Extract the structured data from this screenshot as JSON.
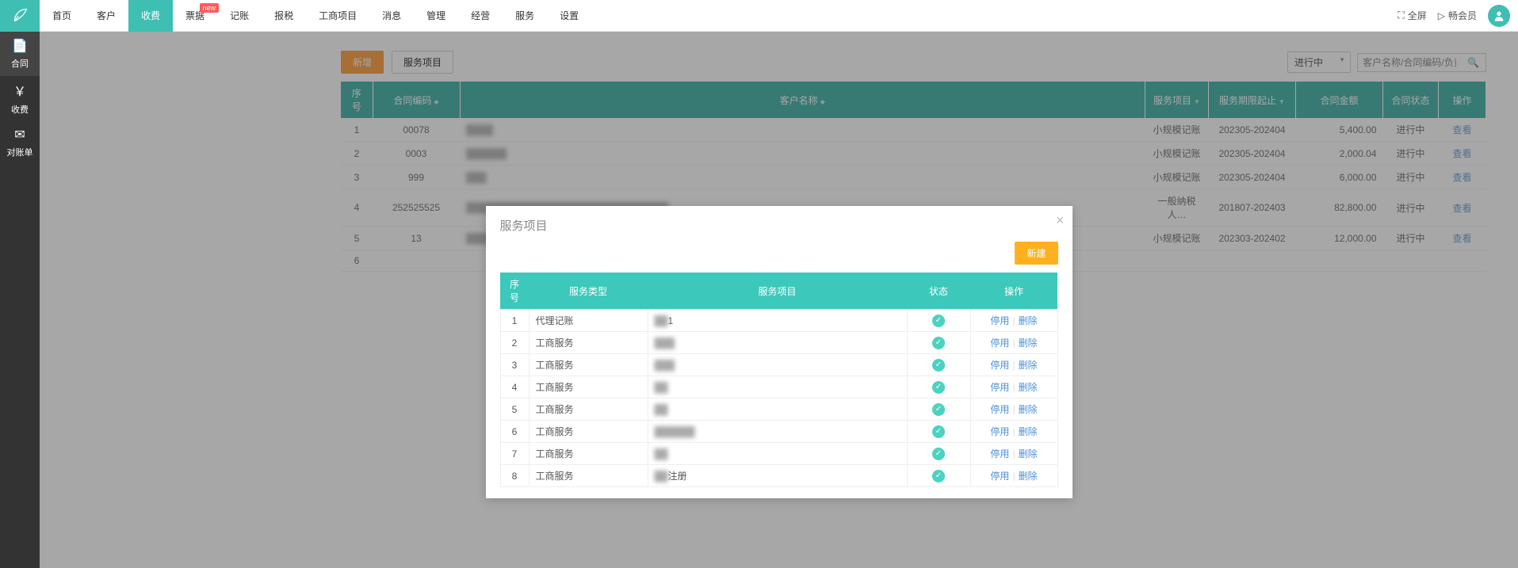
{
  "nav": {
    "items": [
      {
        "label": "首页"
      },
      {
        "label": "客户"
      },
      {
        "label": "收费",
        "active": true
      },
      {
        "label": "票据",
        "badge": "new"
      },
      {
        "label": "记账"
      },
      {
        "label": "报税"
      },
      {
        "label": "工商项目"
      },
      {
        "label": "消息"
      },
      {
        "label": "管理"
      },
      {
        "label": "经营"
      },
      {
        "label": "服务"
      },
      {
        "label": "设置"
      }
    ]
  },
  "header_right": {
    "fullscreen": "全屏",
    "member": "畅会员"
  },
  "sidebar": {
    "items": [
      {
        "icon": "📄",
        "label": "合同",
        "active": true
      },
      {
        "icon": "￥",
        "label": "收费"
      },
      {
        "icon": "✉",
        "label": "对账单"
      }
    ]
  },
  "toolbar": {
    "new_btn": "新增",
    "service_btn": "服务项目",
    "filter_value": "进行中",
    "search_placeholder": "客户名称/合同编码/负责人"
  },
  "table": {
    "headers": {
      "seq": "序号",
      "code": "合同编码",
      "customer": "客户名称",
      "service": "服务项目",
      "period": "服务期限起止",
      "amount": "合同金额",
      "status": "合同状态",
      "ops": "操作"
    },
    "rows": [
      {
        "seq": "1",
        "code": "00078",
        "customer": "████",
        "service": "小规模记账",
        "period": "202305-202404",
        "amount": "5,400.00",
        "status": "进行中",
        "op": "查看"
      },
      {
        "seq": "2",
        "code": "0003",
        "customer": "██████",
        "service": "小规模记账",
        "period": "202305-202404",
        "amount": "2,000.04",
        "status": "进行中",
        "op": "查看"
      },
      {
        "seq": "3",
        "code": "999",
        "customer": "███",
        "service": "小规模记账",
        "period": "202305-202404",
        "amount": "6,000.00",
        "status": "进行中",
        "op": "查看"
      },
      {
        "seq": "4",
        "code": "252525525",
        "customer": "██████████████████████████████",
        "service": "一般纳税人…",
        "period": "201807-202403",
        "amount": "82,800.00",
        "status": "进行中",
        "op": "查看"
      },
      {
        "seq": "5",
        "code": "13",
        "customer": "███████████",
        "service": "小规模记账",
        "period": "202303-202402",
        "amount": "12,000.00",
        "status": "进行中",
        "op": "查看"
      },
      {
        "seq": "6",
        "code": "",
        "customer": "",
        "service": "",
        "period": "",
        "amount": "",
        "status": "",
        "op": ""
      }
    ]
  },
  "modal": {
    "title": "服务项目",
    "new_btn": "新建",
    "headers": {
      "seq": "序号",
      "type": "服务类型",
      "item": "服务项目",
      "status": "状态",
      "ops": "操作"
    },
    "op_disable": "停用",
    "op_delete": "删除",
    "rows": [
      {
        "seq": "1",
        "type": "代理记账",
        "item_prefix": "██",
        "item_suffix": "1"
      },
      {
        "seq": "2",
        "type": "工商服务",
        "item_prefix": "███",
        "item_suffix": ""
      },
      {
        "seq": "3",
        "type": "工商服务",
        "item_prefix": "███",
        "item_suffix": ""
      },
      {
        "seq": "4",
        "type": "工商服务",
        "item_prefix": "██",
        "item_suffix": ""
      },
      {
        "seq": "5",
        "type": "工商服务",
        "item_prefix": "██",
        "item_suffix": ""
      },
      {
        "seq": "6",
        "type": "工商服务",
        "item_prefix": "██████",
        "item_suffix": ""
      },
      {
        "seq": "7",
        "type": "工商服务",
        "item_prefix": "██",
        "item_suffix": ""
      },
      {
        "seq": "8",
        "type": "工商服务",
        "item_prefix": "██",
        "item_suffix": "注册"
      }
    ]
  }
}
